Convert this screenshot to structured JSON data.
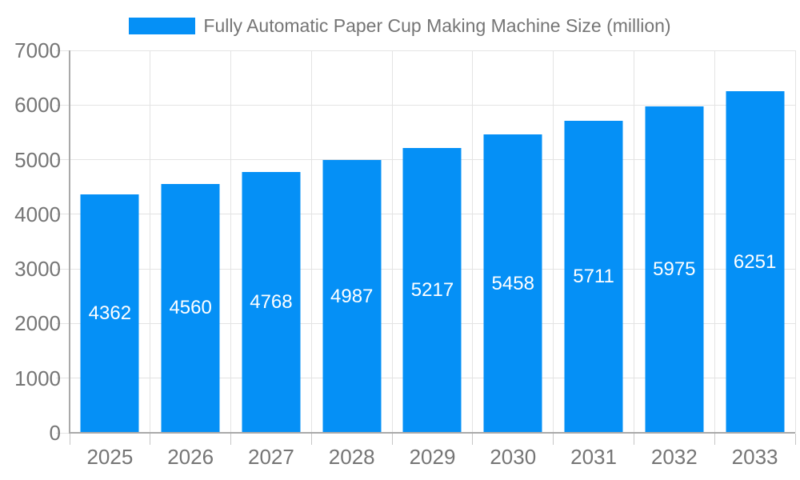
{
  "legend": {
    "label": "Fully Automatic Paper Cup Making Machine Size (million)"
  },
  "chart_data": {
    "type": "bar",
    "title": "Fully Automatic Paper Cup Making Machine Size (million)",
    "categories": [
      "2025",
      "2026",
      "2027",
      "2028",
      "2029",
      "2030",
      "2031",
      "2032",
      "2033"
    ],
    "values": [
      4362,
      4560,
      4768,
      4987,
      5217,
      5458,
      5711,
      5975,
      6251
    ],
    "series": [
      {
        "name": "Fully Automatic Paper Cup Making Machine Size (million)",
        "values": [
          4362,
          4560,
          4768,
          4987,
          5217,
          5458,
          5711,
          5975,
          6251
        ]
      }
    ],
    "xlabel": "",
    "ylabel": "",
    "ylim": [
      0,
      7000
    ],
    "yticks": [
      0,
      1000,
      2000,
      3000,
      4000,
      5000,
      6000,
      7000
    ],
    "bar_value_labels_shown": true,
    "grid": "both",
    "legend_position": "top-center",
    "colors": {
      "bar": "#0590F6",
      "bar_label": "#FFFFFF",
      "axis_text": "#757575",
      "grid_line": "#E3E3E3",
      "axis_line": "#A9A9A9",
      "background": "#FFFFFF"
    }
  }
}
